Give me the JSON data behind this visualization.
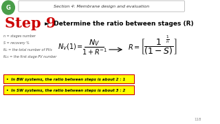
{
  "bg_color": "#ffffff",
  "header_text": "Section 4: Membrane design and evaluation",
  "step_text": "Step 9",
  "step_color": "#cc0000",
  "arrow_text": "►  Determine the ratio between stages (R)",
  "small_labels": [
    "n = stages number",
    "S = recovery %",
    "Nᵥ = the total number of PVs",
    "Nᵥ₁ = the first stage PV number"
  ],
  "bullet1_text": "In BW systems, the ratio between steps is about 2 : 1",
  "bullet2_text": "In SW systems, the ratio between steps is about 3 : 2",
  "bullet1_bg": "#ffff00",
  "bullet2_bg": "#ffff00",
  "bullet1_border": "#cc0000",
  "bullet2_border": "#cc0000",
  "page_num": "118"
}
